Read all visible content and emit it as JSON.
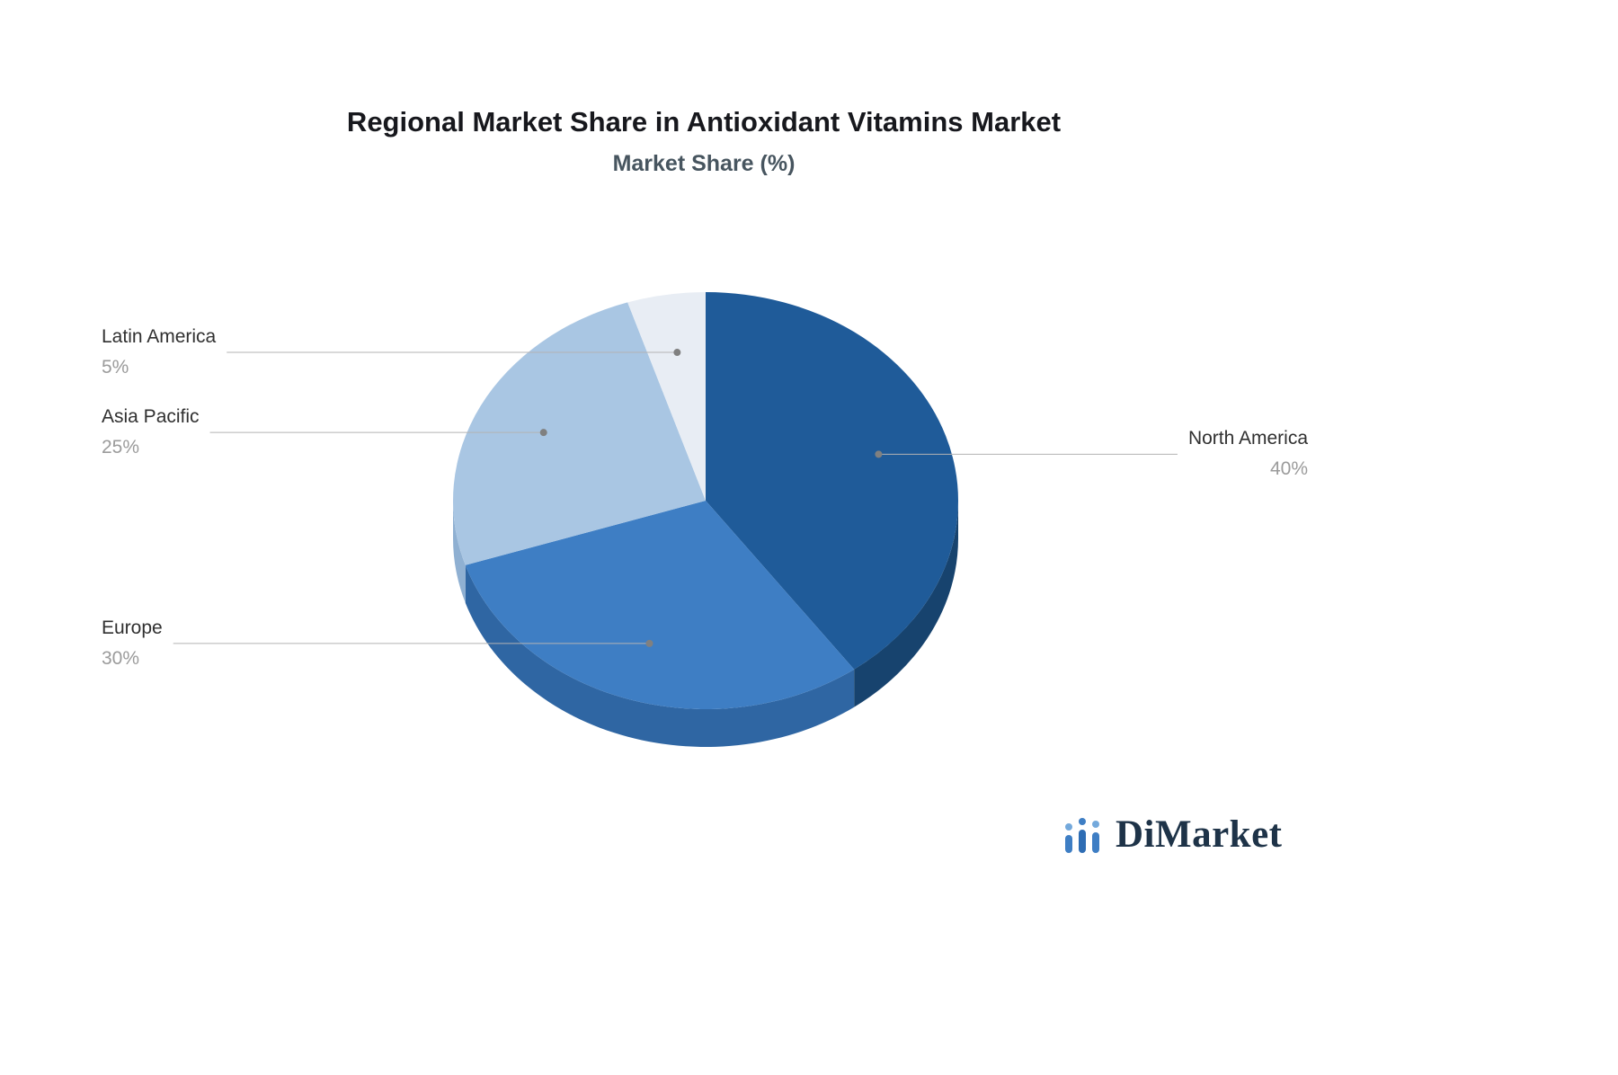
{
  "title": "Regional Market Share in Antioxidant Vitamins Market",
  "subtitle": "Market Share (%)",
  "brand": {
    "name": "DiMarket"
  },
  "chart_data": {
    "type": "pie",
    "style": "3d",
    "title": "Regional Market Share in Antioxidant Vitamins Market",
    "subtitle": "Market Share (%)",
    "unit": "%",
    "start_angle_deg": 0,
    "direction": "clockwise",
    "labels": [
      "North America",
      "Europe",
      "Asia Pacific",
      "Latin America"
    ],
    "values": [
      40,
      30,
      25,
      5
    ],
    "colors": [
      "#1f5b99",
      "#3e7ec4",
      "#a9c6e3",
      "#e8edf4"
    ],
    "side_colors": [
      "#17436e",
      "#2f66a3",
      "#8fb0d2",
      "#c9d5e4"
    ],
    "label_sides": [
      "right",
      "left",
      "left",
      "left"
    ],
    "legend": "none",
    "grid": "off"
  }
}
